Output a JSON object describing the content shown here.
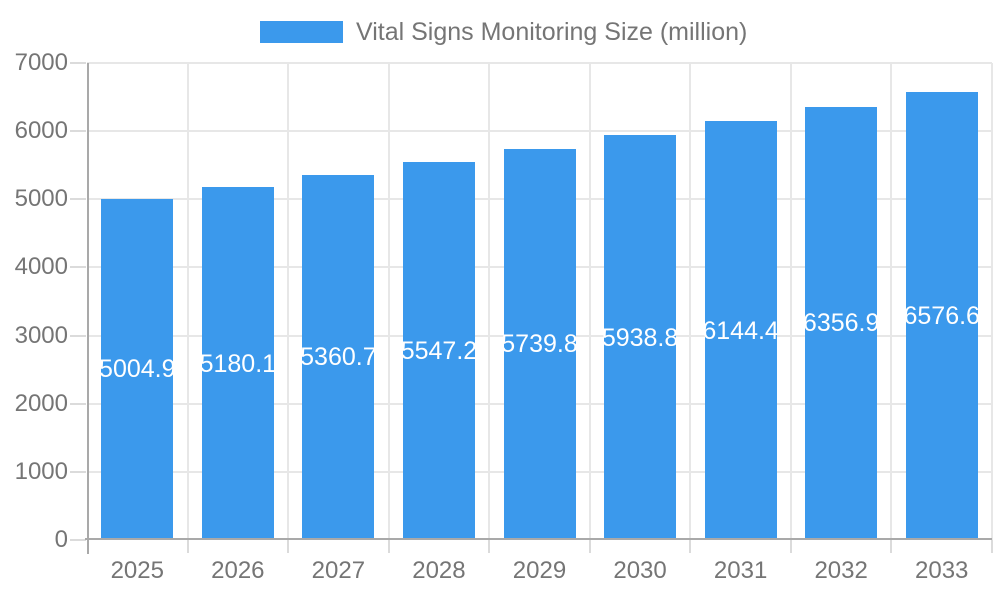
{
  "chart_data": {
    "type": "bar",
    "title": "",
    "legend_position": "top",
    "categories": [
      "2025",
      "2026",
      "2027",
      "2028",
      "2029",
      "2030",
      "2031",
      "2032",
      "2033"
    ],
    "series": [
      {
        "name": "Vital Signs Monitoring Size (million)",
        "values": [
          5004.9,
          5180.1,
          5360.7,
          5547.2,
          5739.8,
          5938.8,
          6144.4,
          6356.9,
          6576.6
        ]
      }
    ],
    "value_labels": [
      "5004.9",
      "5180.1",
      "5360.7",
      "5547.2",
      "5739.8",
      "5938.8",
      "6144.4",
      "6356.9",
      "6576.6"
    ],
    "xlabel": "",
    "ylabel": "",
    "ylim": [
      0,
      7000
    ],
    "yticks": [
      0,
      1000,
      2000,
      3000,
      4000,
      5000,
      6000,
      7000
    ],
    "ytick_labels": [
      "0",
      "1000",
      "2000",
      "3000",
      "4000",
      "5000",
      "6000",
      "7000"
    ],
    "grid": true,
    "colors": {
      "bar": "#3B99EC",
      "value_label": "#FFFFFF",
      "axis_label": "#757575",
      "grid_line": "#E7E7E7",
      "axis_line": "#A9A9A9"
    }
  }
}
